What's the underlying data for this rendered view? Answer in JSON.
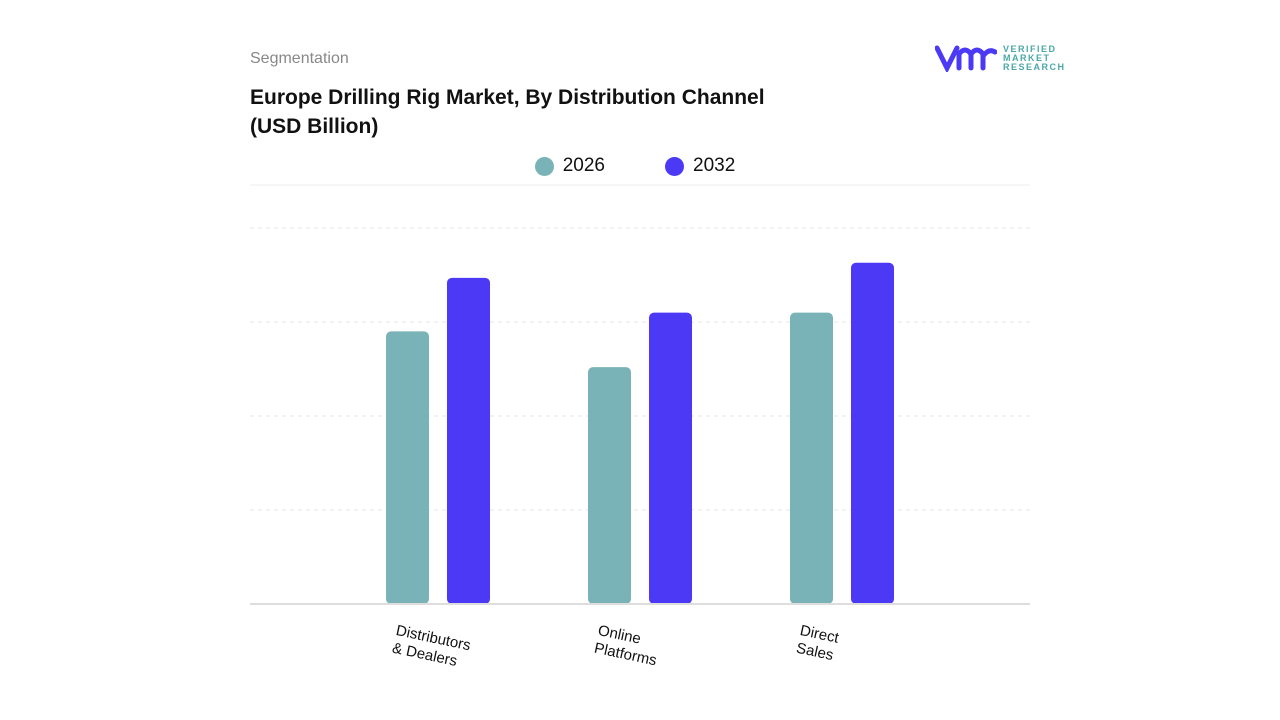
{
  "header": {
    "segment_label": "Segmentation",
    "title": "Europe Drilling Rig Market, By Distribution Channel (USD Billion)"
  },
  "logo": {
    "text": [
      "VERIFIED",
      "MARKET",
      "RESEARCH"
    ]
  },
  "chart_data": {
    "type": "bar",
    "title": "Europe Drilling Rig Market, By Distribution Channel (USD Billion)",
    "categories": [
      "Distributors & Dealers",
      "Online Platforms",
      "Direct Sales"
    ],
    "series": [
      {
        "name": "2026",
        "color": "#7ab3b7",
        "values": [
          2.9,
          2.52,
          3.1
        ]
      },
      {
        "name": "2032",
        "color": "#4b39f5",
        "values": [
          3.47,
          3.1,
          3.63
        ]
      }
    ],
    "ylim": [
      0,
      4
    ],
    "grid": true,
    "legend": "top",
    "xlabel": "",
    "ylabel": ""
  }
}
